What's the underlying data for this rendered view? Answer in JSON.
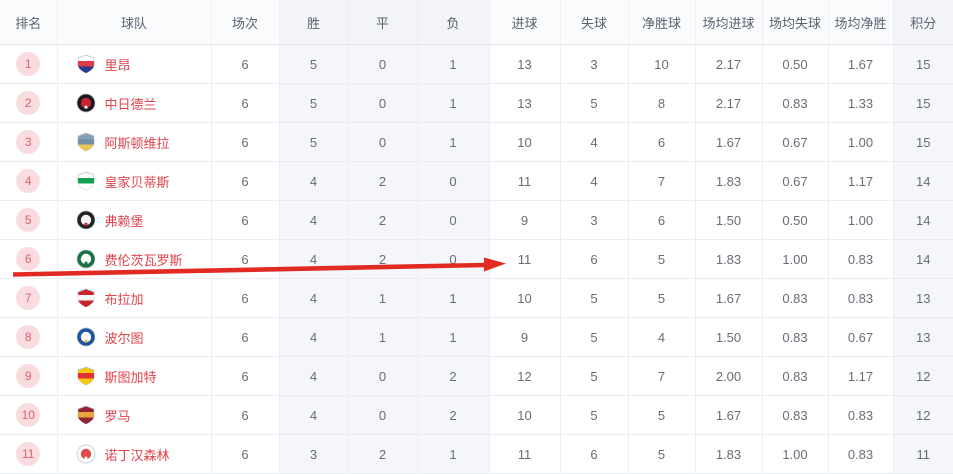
{
  "table": {
    "columns": [
      {
        "key": "rank",
        "label": "排名",
        "shaded": false
      },
      {
        "key": "team",
        "label": "球队",
        "shaded": false
      },
      {
        "key": "played",
        "label": "场次",
        "shaded": false
      },
      {
        "key": "win",
        "label": "胜",
        "shaded": true
      },
      {
        "key": "draw",
        "label": "平",
        "shaded": true
      },
      {
        "key": "loss",
        "label": "负",
        "shaded": true
      },
      {
        "key": "goals_for",
        "label": "进球",
        "shaded": false
      },
      {
        "key": "goals_against",
        "label": "失球",
        "shaded": false
      },
      {
        "key": "goal_diff",
        "label": "净胜球",
        "shaded": false
      },
      {
        "key": "avg_goals_for",
        "label": "场均进球",
        "shaded": false
      },
      {
        "key": "avg_goals_against",
        "label": "场均失球",
        "shaded": false
      },
      {
        "key": "avg_goal_diff",
        "label": "场均净胜",
        "shaded": false
      },
      {
        "key": "points",
        "label": "积分",
        "shaded": true
      }
    ],
    "rows": [
      {
        "rank": "1",
        "team": "里昂",
        "logo": {
          "icon": "lyon-logo",
          "shape": "shield",
          "colors": [
            "#ffffff",
            "#dd3b48",
            "#2b3a8f"
          ]
        },
        "stats": {
          "played": "6",
          "win": "5",
          "draw": "0",
          "loss": "1",
          "goals_for": "13",
          "goals_against": "3",
          "goal_diff": "10",
          "avg_goals_for": "2.17",
          "avg_goals_against": "0.50",
          "avg_goal_diff": "1.67",
          "points": "15"
        }
      },
      {
        "rank": "2",
        "team": "中日德兰",
        "logo": {
          "icon": "midtjylland-logo",
          "shape": "circle",
          "colors": [
            "#1a1a1a",
            "#cf2333",
            "#ffffff"
          ]
        },
        "stats": {
          "played": "6",
          "win": "5",
          "draw": "0",
          "loss": "1",
          "goals_for": "13",
          "goals_against": "5",
          "goal_diff": "8",
          "avg_goals_for": "2.17",
          "avg_goals_against": "0.83",
          "avg_goal_diff": "1.33",
          "points": "15"
        }
      },
      {
        "rank": "3",
        "team": "阿斯顿维拉",
        "logo": {
          "icon": "aston-villa-logo",
          "shape": "shield",
          "colors": [
            "#88a0b8",
            "#7390ab",
            "#ecc64f"
          ]
        },
        "stats": {
          "played": "6",
          "win": "5",
          "draw": "0",
          "loss": "1",
          "goals_for": "10",
          "goals_against": "4",
          "goal_diff": "6",
          "avg_goals_for": "1.67",
          "avg_goals_against": "0.67",
          "avg_goal_diff": "1.00",
          "points": "15"
        }
      },
      {
        "rank": "4",
        "team": "皇家贝蒂斯",
        "logo": {
          "icon": "real-betis-logo",
          "shape": "shield",
          "colors": [
            "#ffffff",
            "#0fa14e",
            "#ffffff"
          ]
        },
        "stats": {
          "played": "6",
          "win": "4",
          "draw": "2",
          "loss": "0",
          "goals_for": "11",
          "goals_against": "4",
          "goal_diff": "7",
          "avg_goals_for": "1.83",
          "avg_goals_against": "0.67",
          "avg_goal_diff": "1.17",
          "points": "14"
        }
      },
      {
        "rank": "5",
        "team": "弗赖堡",
        "logo": {
          "icon": "freiburg-logo",
          "shape": "circle",
          "colors": [
            "#222222",
            "#f5f5f5",
            "#d02a2a"
          ]
        },
        "stats": {
          "played": "6",
          "win": "4",
          "draw": "2",
          "loss": "0",
          "goals_for": "9",
          "goals_against": "3",
          "goal_diff": "6",
          "avg_goals_for": "1.50",
          "avg_goals_against": "0.50",
          "avg_goal_diff": "1.00",
          "points": "14"
        }
      },
      {
        "rank": "6",
        "team": "费伦茨瓦罗斯",
        "logo": {
          "icon": "ferencvaros-logo",
          "shape": "circle",
          "colors": [
            "#1b7040",
            "#ffffff",
            "#1b7040"
          ]
        },
        "stats": {
          "played": "6",
          "win": "4",
          "draw": "2",
          "loss": "0",
          "goals_for": "11",
          "goals_against": "6",
          "goal_diff": "5",
          "avg_goals_for": "1.83",
          "avg_goals_against": "1.00",
          "avg_goal_diff": "0.83",
          "points": "14"
        }
      },
      {
        "rank": "7",
        "team": "布拉加",
        "logo": {
          "icon": "braga-logo",
          "shape": "shield",
          "colors": [
            "#c8262c",
            "#f3f5f7",
            "#c8262c"
          ]
        },
        "stats": {
          "played": "6",
          "win": "4",
          "draw": "1",
          "loss": "1",
          "goals_for": "10",
          "goals_against": "5",
          "goal_diff": "5",
          "avg_goals_for": "1.67",
          "avg_goals_against": "0.83",
          "avg_goal_diff": "0.83",
          "points": "13"
        }
      },
      {
        "rank": "8",
        "team": "波尔图",
        "logo": {
          "icon": "porto-logo",
          "shape": "circle",
          "colors": [
            "#1d54a0",
            "#ffffff",
            "#e5b53c"
          ]
        },
        "stats": {
          "played": "6",
          "win": "4",
          "draw": "1",
          "loss": "1",
          "goals_for": "9",
          "goals_against": "5",
          "goal_diff": "4",
          "avg_goals_for": "1.50",
          "avg_goals_against": "0.83",
          "avg_goal_diff": "0.67",
          "points": "13"
        }
      },
      {
        "rank": "9",
        "team": "斯图加特",
        "logo": {
          "icon": "stuttgart-logo",
          "shape": "shield",
          "colors": [
            "#f6c70f",
            "#e23131",
            "#f6c70f"
          ]
        },
        "stats": {
          "played": "6",
          "win": "4",
          "draw": "0",
          "loss": "2",
          "goals_for": "12",
          "goals_against": "5",
          "goal_diff": "7",
          "avg_goals_for": "2.00",
          "avg_goals_against": "0.83",
          "avg_goal_diff": "1.17",
          "points": "12"
        }
      },
      {
        "rank": "10",
        "team": "罗马",
        "logo": {
          "icon": "roma-logo",
          "shape": "shield",
          "colors": [
            "#8e2433",
            "#e9a63c",
            "#8e2433"
          ]
        },
        "stats": {
          "played": "6",
          "win": "4",
          "draw": "0",
          "loss": "2",
          "goals_for": "10",
          "goals_against": "5",
          "goal_diff": "5",
          "avg_goals_for": "1.67",
          "avg_goals_against": "0.83",
          "avg_goal_diff": "0.83",
          "points": "12"
        }
      },
      {
        "rank": "11",
        "team": "诺丁汉森林",
        "logo": {
          "icon": "nottingham-forest-logo",
          "shape": "circle",
          "colors": [
            "#ffffff",
            "#e24b4b",
            "#ffffff"
          ]
        },
        "stats": {
          "played": "6",
          "win": "3",
          "draw": "2",
          "loss": "1",
          "goals_for": "11",
          "goals_against": "6",
          "goal_diff": "5",
          "avg_goals_for": "1.83",
          "avg_goals_against": "1.00",
          "avg_goal_diff": "0.83",
          "points": "11"
        }
      }
    ]
  },
  "colors": {
    "team_link": "#e0434b",
    "rank_badge_bg": "#f9dce0",
    "rank_badge_text": "#d9626e",
    "shaded_column": "#f5f6fa",
    "arrow": "#e12b22",
    "header_text": "#5a6170",
    "cell_text": "#676d78"
  }
}
